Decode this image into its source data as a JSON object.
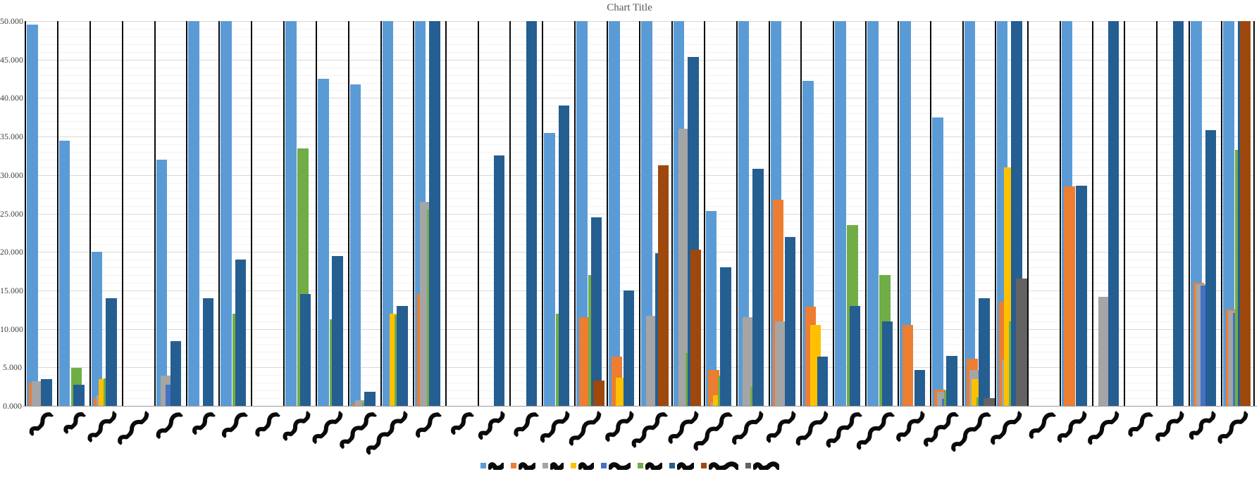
{
  "title": "Chart Title",
  "y_axis": {
    "tick_labels": [
      "0.000",
      "5.000",
      "10.000",
      "15.000",
      "20.000",
      "25.000",
      "30.000",
      "35.000",
      "40.000",
      "45.000",
      "50.000"
    ],
    "max_label": "50.000",
    "min_label": "0.000"
  },
  "x_axis": {
    "labels_redacted": true,
    "note": "all 38 category labels are rotated ~45° and scribbled out in black ink (illegible)",
    "scribble_lengths": [
      42,
      38,
      55,
      60,
      48,
      40,
      46,
      44,
      52,
      58,
      68,
      80,
      46,
      40,
      50,
      44,
      56,
      62,
      54,
      66,
      58,
      72,
      60,
      56,
      62,
      66,
      70,
      54,
      64,
      74,
      60,
      48,
      56,
      60,
      44,
      54,
      50,
      58
    ]
  },
  "legend": {
    "position": "bottom-center",
    "labels_redacted": true,
    "entries": [
      {
        "name": "series-1",
        "color": "#5B9BD5",
        "label": "",
        "scribble_w": 14
      },
      {
        "name": "series-2",
        "color": "#ED7D31",
        "label": "",
        "scribble_w": 16
      },
      {
        "name": "series-3",
        "color": "#A5A5A5",
        "label": "",
        "scribble_w": 11
      },
      {
        "name": "series-4",
        "color": "#FFC000",
        "label": "",
        "scribble_w": 14
      },
      {
        "name": "series-5",
        "color": "#4472C4",
        "label": "",
        "scribble_w": 23
      },
      {
        "name": "series-6",
        "color": "#70AD47",
        "label": "",
        "scribble_w": 16
      },
      {
        "name": "series-7",
        "color": "#255E91",
        "label": "",
        "scribble_w": 16
      },
      {
        "name": "series-8",
        "color": "#9E480E",
        "label": "",
        "scribble_w": 34
      },
      {
        "name": "series-9",
        "color": "#636363",
        "label": "",
        "scribble_w": 29
      }
    ]
  },
  "chart_data": {
    "type": "bar",
    "title": "Chart Title",
    "xlabel": "",
    "ylabel": "",
    "ylim": [
      0,
      50
    ],
    "y_major_step": 5,
    "y_minor_step": 1,
    "grid": "horizontal major+minor, black vertical category separators",
    "n_groups": 38,
    "clipping_note": "values recorded as 52 are bars that rise above the 50.000 axis maximum and are clipped at the top of the plot",
    "categories_note": "category names are scribbled out and unreadable; 38 categories total",
    "series": [
      {
        "name": "series-1-lightblue",
        "color": "#5B9BD5",
        "values": [
          49.5,
          34.5,
          20.0,
          null,
          32.0,
          52,
          52,
          null,
          52,
          42.5,
          41.8,
          52,
          52,
          null,
          null,
          null,
          35.5,
          52,
          52,
          52,
          52,
          25.3,
          52,
          52,
          42.2,
          52,
          52,
          52,
          37.5,
          52,
          52,
          null,
          52,
          null,
          null,
          null,
          52,
          52
        ]
      },
      {
        "name": "series-2-orange",
        "color": "#ED7D31",
        "values": [
          3.0,
          null,
          1.0,
          null,
          null,
          null,
          null,
          null,
          null,
          null,
          0.3,
          null,
          14.5,
          null,
          null,
          null,
          null,
          11.5,
          6.4,
          null,
          null,
          4.7,
          null,
          26.8,
          12.9,
          null,
          null,
          10.5,
          2.1,
          6.1,
          13.5,
          null,
          28.5,
          null,
          null,
          null,
          16.0,
          12.5
        ]
      },
      {
        "name": "series-3-gray",
        "color": "#A5A5A5",
        "values": [
          3.2,
          null,
          1.4,
          null,
          3.9,
          null,
          null,
          null,
          null,
          null,
          0.7,
          null,
          26.5,
          null,
          null,
          null,
          null,
          null,
          null,
          11.7,
          36.0,
          0.5,
          11.5,
          11.0,
          null,
          null,
          null,
          null,
          1.8,
          4.7,
          6.0,
          null,
          null,
          14.2,
          null,
          null,
          15.8,
          12.3
        ]
      },
      {
        "name": "series-4-yellow",
        "color": "#FFC000",
        "values": [
          null,
          null,
          3.5,
          null,
          null,
          null,
          null,
          null,
          null,
          null,
          null,
          12.0,
          null,
          null,
          null,
          null,
          null,
          null,
          3.7,
          null,
          null,
          1.4,
          null,
          null,
          10.5,
          null,
          null,
          null,
          null,
          3.5,
          31.0,
          null,
          null,
          null,
          null,
          null,
          null,
          null
        ]
      },
      {
        "name": "series-5-blue",
        "color": "#4472C4",
        "values": [
          null,
          null,
          null,
          null,
          2.7,
          null,
          null,
          null,
          null,
          null,
          null,
          null,
          null,
          null,
          null,
          null,
          null,
          null,
          null,
          null,
          null,
          null,
          null,
          null,
          null,
          null,
          null,
          null,
          0.9,
          null,
          null,
          null,
          null,
          null,
          null,
          null,
          15.6,
          12.1
        ]
      },
      {
        "name": "series-6-green",
        "color": "#70AD47",
        "values": [
          null,
          4.9,
          3.6,
          null,
          null,
          null,
          12.0,
          null,
          33.5,
          11.2,
          0.5,
          11.8,
          25.5,
          null,
          null,
          null,
          12.0,
          17.0,
          null,
          null,
          6.9,
          3.9,
          2.5,
          null,
          null,
          23.5,
          17.0,
          null,
          2.0,
          1.1,
          11.0,
          null,
          null,
          null,
          null,
          null,
          null,
          33.3
        ]
      },
      {
        "name": "series-7-darkblue",
        "color": "#255E91",
        "values": [
          3.5,
          2.7,
          14.0,
          null,
          8.4,
          14.0,
          19.0,
          null,
          14.5,
          19.5,
          1.8,
          13.0,
          52,
          null,
          32.5,
          52,
          39.0,
          24.5,
          15.0,
          19.8,
          45.3,
          18.0,
          30.8,
          21.9,
          6.4,
          13.0,
          11.0,
          4.7,
          6.5,
          14.0,
          52,
          null,
          28.6,
          52,
          null,
          52,
          35.8,
          52
        ]
      },
      {
        "name": "series-8-brown",
        "color": "#9E480E",
        "values": [
          null,
          null,
          null,
          null,
          null,
          null,
          null,
          null,
          null,
          null,
          null,
          null,
          null,
          null,
          null,
          null,
          null,
          3.3,
          null,
          31.3,
          20.3,
          null,
          null,
          null,
          null,
          null,
          null,
          null,
          null,
          null,
          null,
          null,
          null,
          null,
          null,
          null,
          null,
          52
        ]
      },
      {
        "name": "series-9-darkgray",
        "color": "#636363",
        "values": [
          null,
          null,
          null,
          null,
          null,
          null,
          null,
          null,
          null,
          null,
          null,
          null,
          null,
          null,
          null,
          null,
          null,
          null,
          null,
          null,
          null,
          null,
          null,
          null,
          null,
          null,
          null,
          null,
          null,
          1.0,
          16.5,
          null,
          null,
          null,
          null,
          null,
          null,
          null
        ]
      }
    ],
    "legend_entries_redacted": true
  }
}
